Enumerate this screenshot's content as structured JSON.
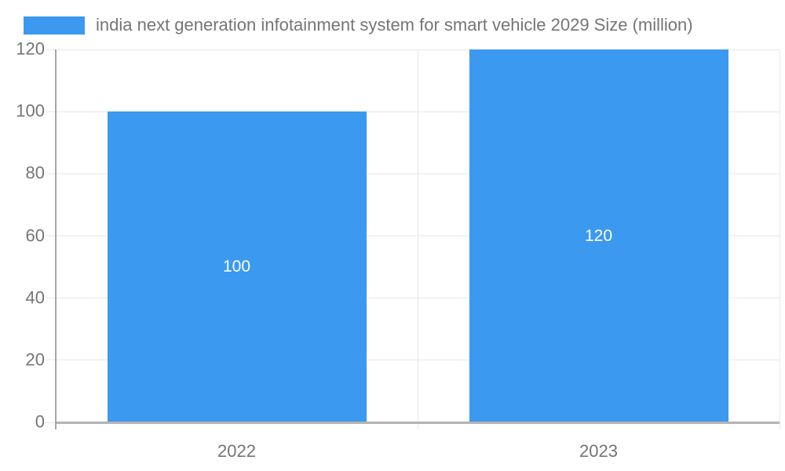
{
  "legend": {
    "label": "india next generation infotainment system for smart vehicle 2029 Size (million)"
  },
  "chart_data": {
    "type": "bar",
    "title": "india next generation infotainment system for smart vehicle 2029 Size (million)",
    "categories": [
      "2022",
      "2023"
    ],
    "series": [
      {
        "name": "india next generation infotainment system for smart vehicle 2029 Size (million)",
        "values": [
          100,
          120
        ]
      }
    ],
    "xlabel": "",
    "ylabel": "",
    "ylim": [
      0,
      120
    ],
    "yticks": [
      0,
      20,
      40,
      60,
      80,
      100,
      120
    ],
    "grid": true,
    "legend_position": "top-left",
    "bar_label_position": "center-inside"
  },
  "colors": {
    "bar": "#3C99F0",
    "bar_label": "#FFFFFF",
    "axis_text": "#757575",
    "legend_text": "#757575",
    "x_axis_line": "#B3B3B3",
    "y_axis_line": "#A6A6A6",
    "gridline": "#E8E8E8",
    "background": "#FFFFFF"
  }
}
